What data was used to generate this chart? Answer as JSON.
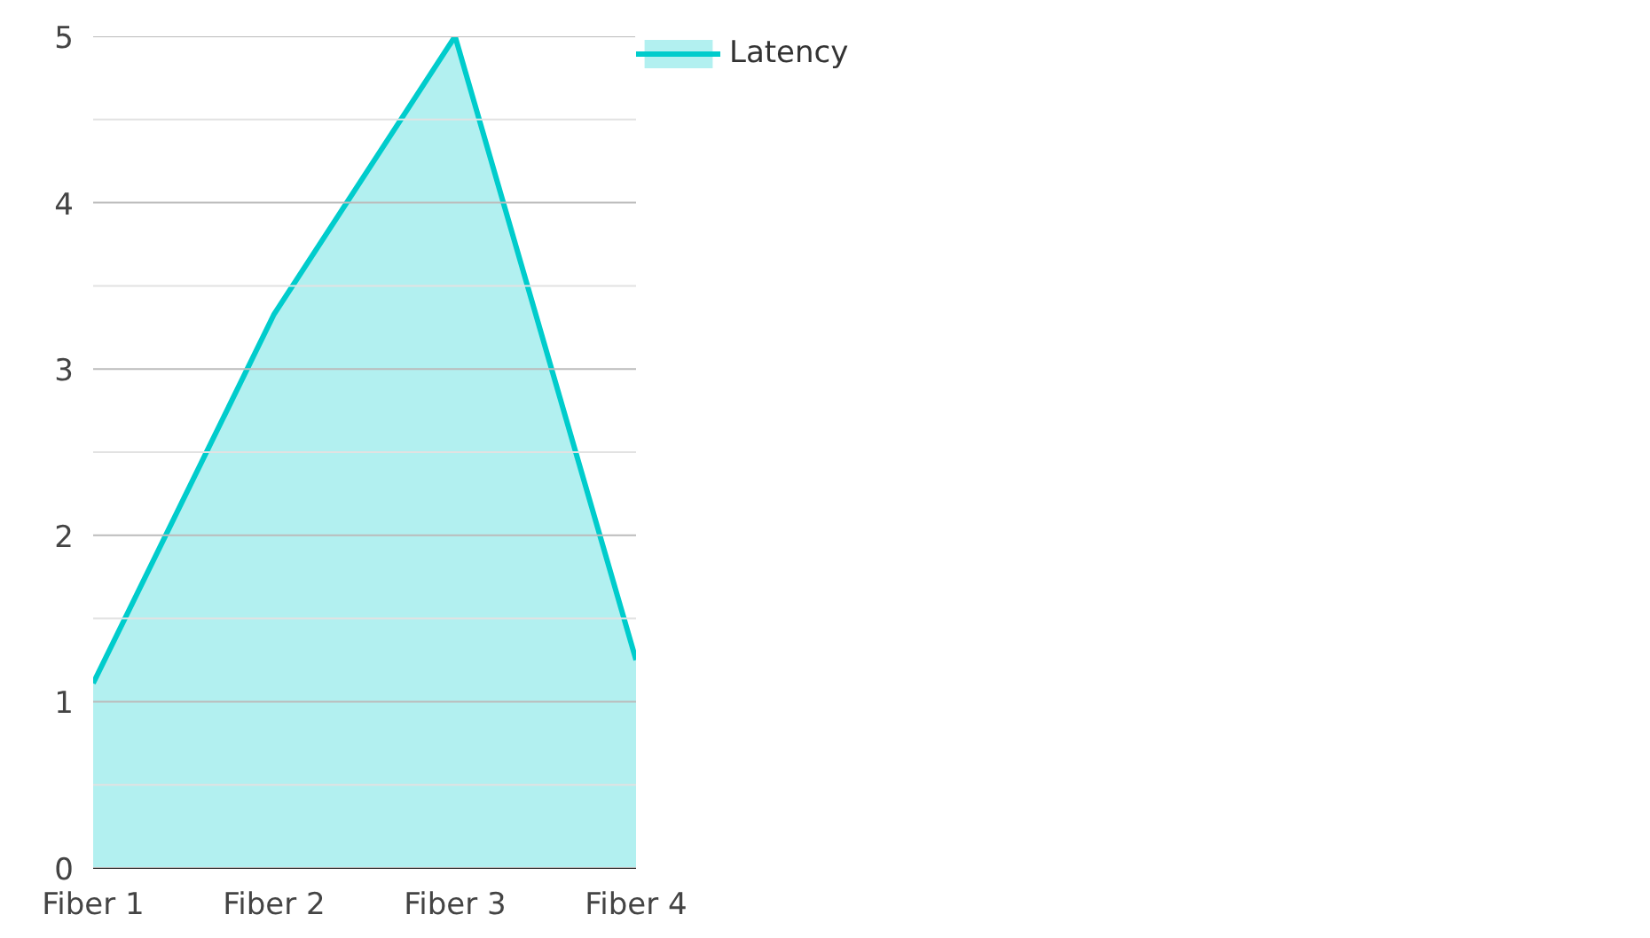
{
  "chart_data": {
    "type": "area",
    "categories": [
      "Fiber 1",
      "Fiber 2",
      "Fiber 3",
      "Fiber 4"
    ],
    "series": [
      {
        "name": "Latency",
        "color": "#00cccc",
        "values": [
          1.11,
          3.33,
          5.0,
          1.25
        ]
      }
    ],
    "ylim": [
      0,
      5
    ],
    "yticks": [
      0,
      {
        "value": 0.5,
        "label": null
      },
      1,
      {
        "value": 1.5,
        "label": null
      },
      2,
      {
        "value": 2.5,
        "label": null
      },
      3,
      {
        "value": 3.5,
        "label": null
      },
      4,
      {
        "value": 4.5,
        "label": null
      },
      5
    ],
    "grid": "y",
    "legend": "top right"
  }
}
